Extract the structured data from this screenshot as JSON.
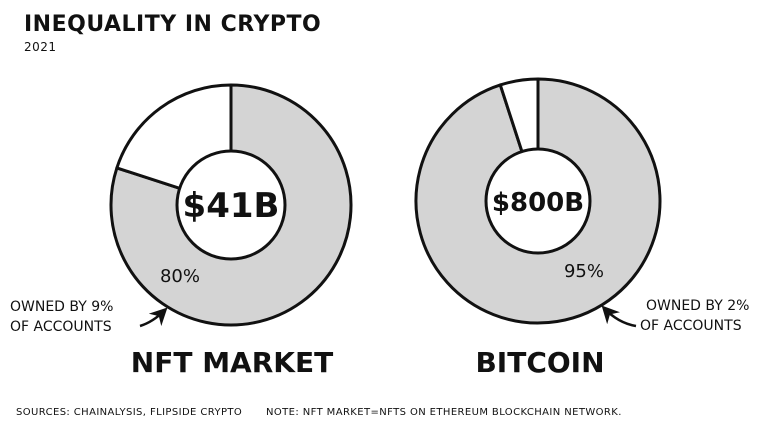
{
  "header": {
    "title": "INEQUALITY IN CRYPTO",
    "subtitle": "2021"
  },
  "chart_data": [
    {
      "type": "pie",
      "style": "donut",
      "title": "NFT MARKET",
      "center_label": "$41B",
      "slices": [
        {
          "label": "80%",
          "value": 80,
          "color": "#d4d4d4"
        },
        {
          "label": "",
          "value": 20,
          "color": "#ffffff"
        }
      ],
      "annotation": [
        "OWNED BY 9%",
        "OF ACCOUNTS"
      ]
    },
    {
      "type": "pie",
      "style": "donut",
      "title": "BITCOIN",
      "center_label": "$800B",
      "slices": [
        {
          "label": "95%",
          "value": 95,
          "color": "#d4d4d4"
        },
        {
          "label": "",
          "value": 5,
          "color": "#ffffff"
        }
      ],
      "annotation": [
        "OWNED BY 2%",
        "OF ACCOUNTS"
      ]
    }
  ],
  "footer": {
    "sources": "SOURCES: CHAINALYSIS, FLIPSIDE CRYPTO",
    "note": "NOTE: NFT MARKET=NFTS ON ETHEREUM BLOCKCHAIN NETWORK."
  }
}
